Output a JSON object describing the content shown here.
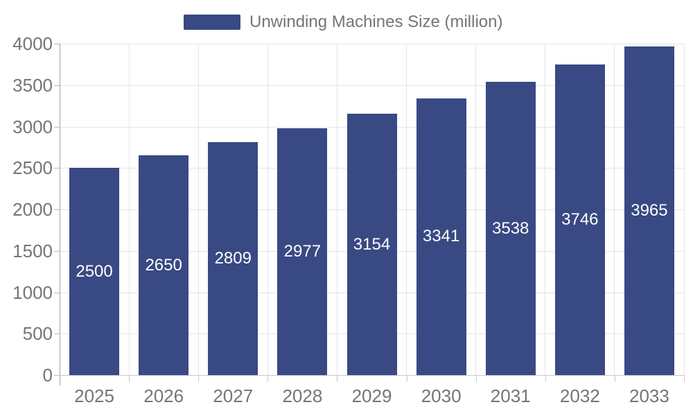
{
  "chart_data": {
    "type": "bar",
    "title": "Unwinding Machines Size (million)",
    "categories": [
      "2025",
      "2026",
      "2027",
      "2028",
      "2029",
      "2030",
      "2031",
      "2032",
      "2033"
    ],
    "values": [
      2500,
      2650,
      2809,
      2977,
      3154,
      3341,
      3538,
      3746,
      3965
    ],
    "xlabel": "",
    "ylabel": "",
    "ylim": [
      0,
      4000
    ],
    "yticks": [
      0,
      500,
      1000,
      1500,
      2000,
      2500,
      3000,
      3500,
      4000
    ],
    "grid": true,
    "legend_position": "top",
    "bar_color": "#394983",
    "bar_label_color": "#ffffff",
    "axis_text_color": "#757575",
    "grid_color": "#e4e4e4"
  }
}
